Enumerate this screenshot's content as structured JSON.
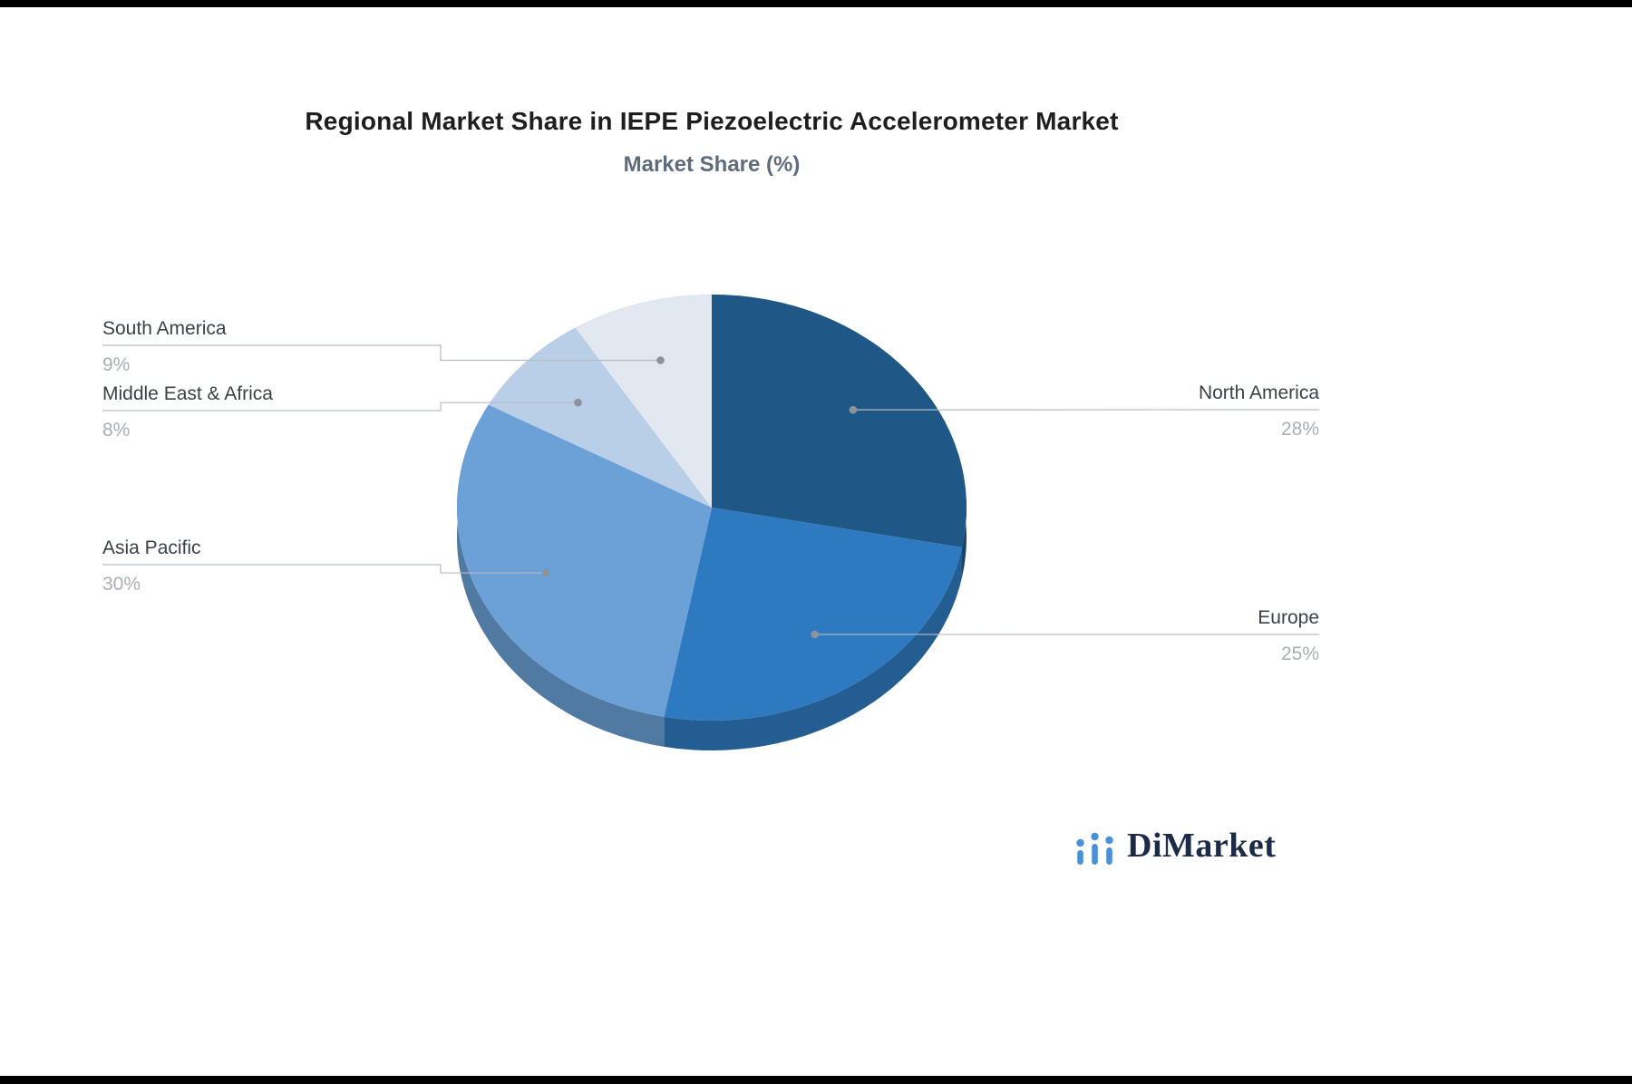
{
  "page": {
    "frame_color": "#000000",
    "background": "#ffffff"
  },
  "header": {
    "title": "Regional Market Share in IEPE Piezoelectric Accelerometer Market",
    "subtitle": "Market Share (%)"
  },
  "chart_data": {
    "type": "pie",
    "title": "Regional Market Share in IEPE Piezoelectric Accelerometer Market",
    "subtitle": "Market Share (%)",
    "unit": "%",
    "style": "3d-pie",
    "direction": "clockwise",
    "start_angle_deg": 0,
    "legend_position": "none",
    "labels_style": "callout-leader-lines",
    "slices": [
      {
        "label": "North America",
        "value": 28,
        "color": "#1f5886",
        "side": "right"
      },
      {
        "label": "Europe",
        "value": 25,
        "color": "#2e7ac0",
        "side": "right"
      },
      {
        "label": "Asia Pacific",
        "value": 30,
        "color": "#6ba1d6",
        "side": "left"
      },
      {
        "label": "Middle East & Africa",
        "value": 8,
        "color": "#b9cee7",
        "side": "left"
      },
      {
        "label": "South America",
        "value": 9,
        "color": "#e2e8f0",
        "side": "left"
      }
    ],
    "callout_colors": {
      "leader_line": "#b6bcc4",
      "dot": "#8d939c",
      "label_text": "#3c4148",
      "percent_text": "#a9aeb6"
    }
  },
  "logo": {
    "brand": "DiMarket",
    "icon": "bar-chart-logo-icon",
    "text_color": "#1c2b47",
    "icon_color": "#4a90d9"
  }
}
